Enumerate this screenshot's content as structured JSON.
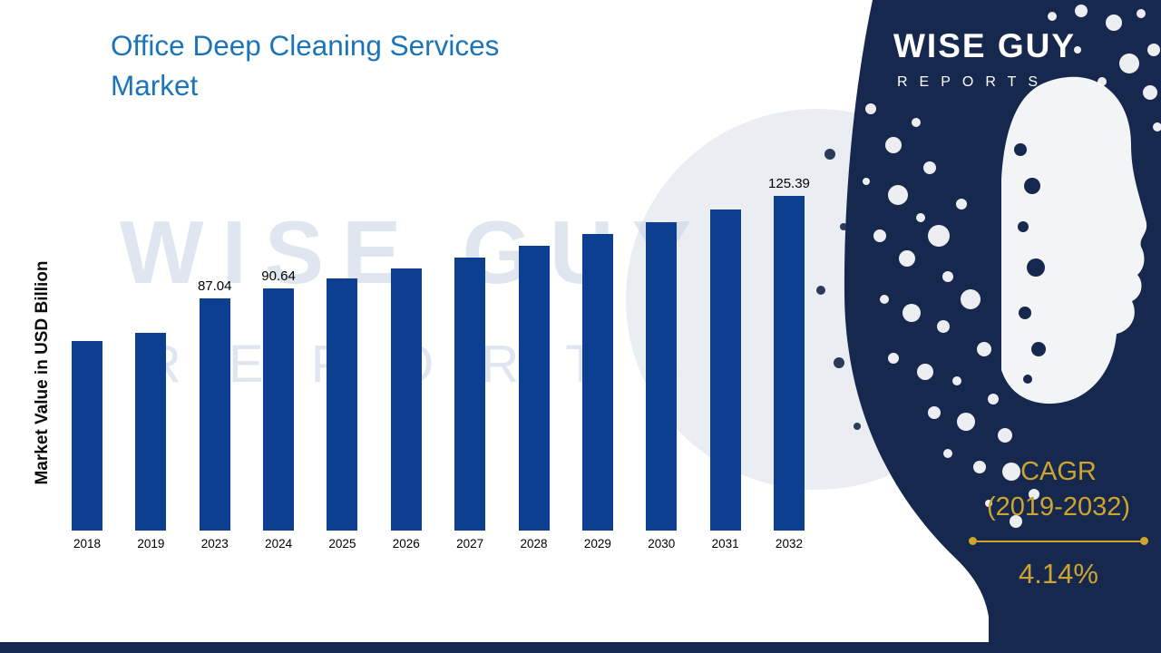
{
  "page": {
    "title": "Office Deep Cleaning Services Market"
  },
  "logo": {
    "name_top": "WISE GUY",
    "name_bottom": "REPORTS"
  },
  "watermark": {
    "line1": "WISE GUY",
    "line2": "REPORTS"
  },
  "cagr": {
    "label": "CAGR",
    "range": "(2019-2032)",
    "value": "4.14%"
  },
  "colors": {
    "bar": "#0d3f91",
    "panel": "#16284e",
    "title": "#1b74ba",
    "gold": "#cda42d"
  },
  "chart_data": {
    "type": "bar",
    "title": "Office Deep Cleaning Services Market",
    "ylabel": "Market Value in USD Billion",
    "unit": "USD Billion",
    "categories": [
      "2018",
      "2019",
      "2023",
      "2024",
      "2025",
      "2026",
      "2027",
      "2028",
      "2029",
      "2030",
      "2031",
      "2032"
    ],
    "values": [
      71.01,
      73.95,
      87.04,
      90.64,
      94.39,
      98.3,
      102.37,
      106.61,
      111.02,
      115.62,
      120.41,
      125.39
    ],
    "bar_labels": [
      "",
      "",
      "87.04",
      "90.64",
      "",
      "",
      "",
      "",
      "",
      "",
      "",
      "125.39"
    ],
    "ylim": [
      0,
      135
    ],
    "grid": false,
    "legend": false,
    "cagr_range": "(2019-2032)",
    "cagr_value": "4.14%"
  }
}
